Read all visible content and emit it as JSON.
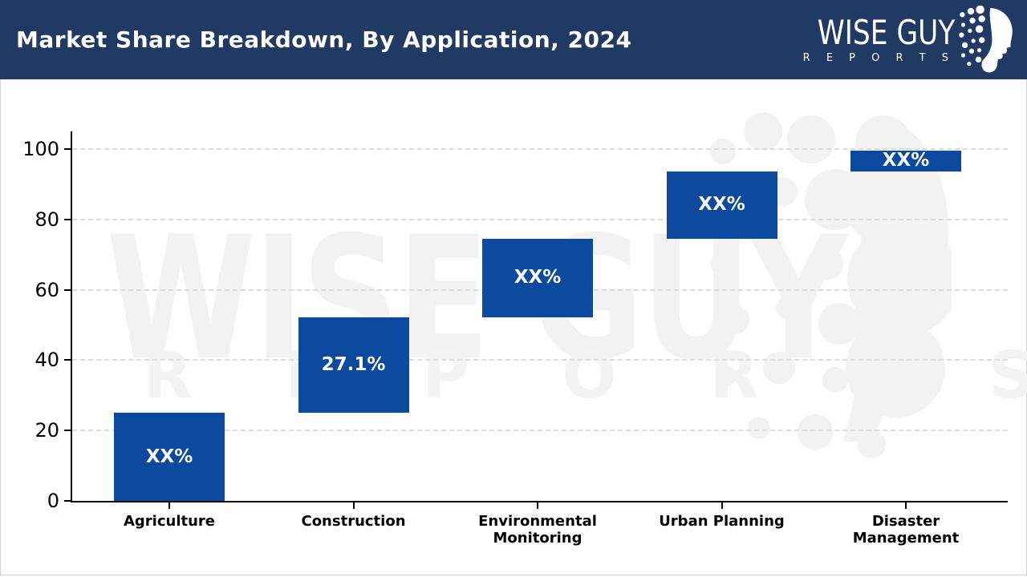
{
  "header": {
    "title": "Market Share Breakdown, By Application, 2024",
    "bg_color": "#213a64",
    "logo": {
      "wordmark": "WISE GUY",
      "subtitle": "R E P O R T S"
    }
  },
  "watermark": {
    "wordmark": "WISE GUY",
    "subtitle": "R E P O R T S"
  },
  "chart_data": {
    "type": "bar",
    "subtype": "waterfall",
    "title": "Market Share Breakdown, By Application, 2024",
    "categories": [
      "Agriculture",
      "Construction",
      "Environmental Monitoring",
      "Urban Planning",
      "Disaster Management"
    ],
    "segments": [
      {
        "category": "Agriculture",
        "start": 0,
        "end": 25.0,
        "label": "XX%"
      },
      {
        "category": "Construction",
        "start": 25.0,
        "end": 52.1,
        "label": "27.1%"
      },
      {
        "category": "Environmental Monitoring",
        "start": 52.1,
        "end": 74.6,
        "label": "XX%"
      },
      {
        "category": "Urban Planning",
        "start": 74.6,
        "end": 93.7,
        "label": "XX%"
      },
      {
        "category": "Disaster Management",
        "start": 93.7,
        "end": 99.6,
        "label": "XX%"
      }
    ],
    "yticks": [
      0,
      20,
      40,
      60,
      80,
      100
    ],
    "ylim": [
      0,
      105
    ],
    "grid": "horizontal-dashed",
    "legend": "none",
    "xlabel": "",
    "ylabel": "",
    "bar_color": "#0b4a9f",
    "bar_label_color": "#ffffff",
    "axis_color": "#000000",
    "grid_color": "#dcdcdc",
    "watermark_color": "#f2f2f2"
  }
}
